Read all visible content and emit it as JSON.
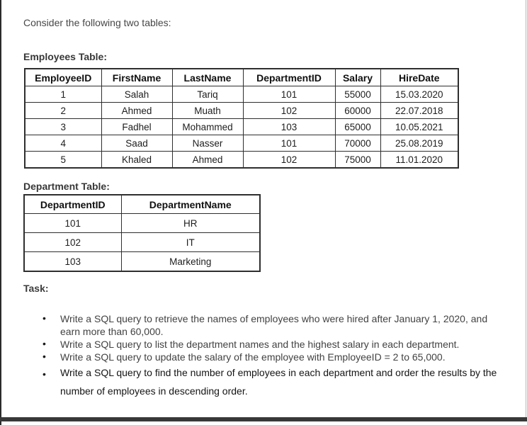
{
  "page": {
    "intro": "Consider the following two tables:",
    "employees_section_title": "Employees Table:",
    "department_section_title": "Department Table:",
    "task_section_title": "Task:"
  },
  "employees_table": {
    "headers": [
      "EmployeeID",
      "FirstName",
      "LastName",
      "DepartmentID",
      "Salary",
      "HireDate"
    ],
    "rows": [
      [
        "1",
        "Salah",
        "Tariq",
        "101",
        "55000",
        "15.03.2020"
      ],
      [
        "2",
        "Ahmed",
        "Muath",
        "102",
        "60000",
        "22.07.2018"
      ],
      [
        "3",
        "Fadhel",
        "Mohammed",
        "103",
        "65000",
        "10.05.2021"
      ],
      [
        "4",
        "Saad",
        "Nasser",
        "101",
        "70000",
        "25.08.2019"
      ],
      [
        "5",
        "Khaled",
        "Ahmed",
        "102",
        "75000",
        "11.01.2020"
      ]
    ]
  },
  "department_table": {
    "headers": [
      "DepartmentID",
      "DepartmentName"
    ],
    "rows": [
      [
        "101",
        "HR"
      ],
      [
        "102",
        "IT"
      ],
      [
        "103",
        "Marketing"
      ]
    ]
  },
  "tasks": [
    "Write a SQL query to retrieve the names of employees who were hired after January 1, 2020, and earn more than 60,000.",
    "Write a SQL query to list the department names and the highest salary in each department.",
    "Write a SQL query to update the salary of the employee with EmployeeID = 2 to 65,000.",
    "Write a SQL query to find the number of employees in each department and order the results by the number of employees in descending order."
  ],
  "list_style": {
    "bullet_char": "•"
  }
}
